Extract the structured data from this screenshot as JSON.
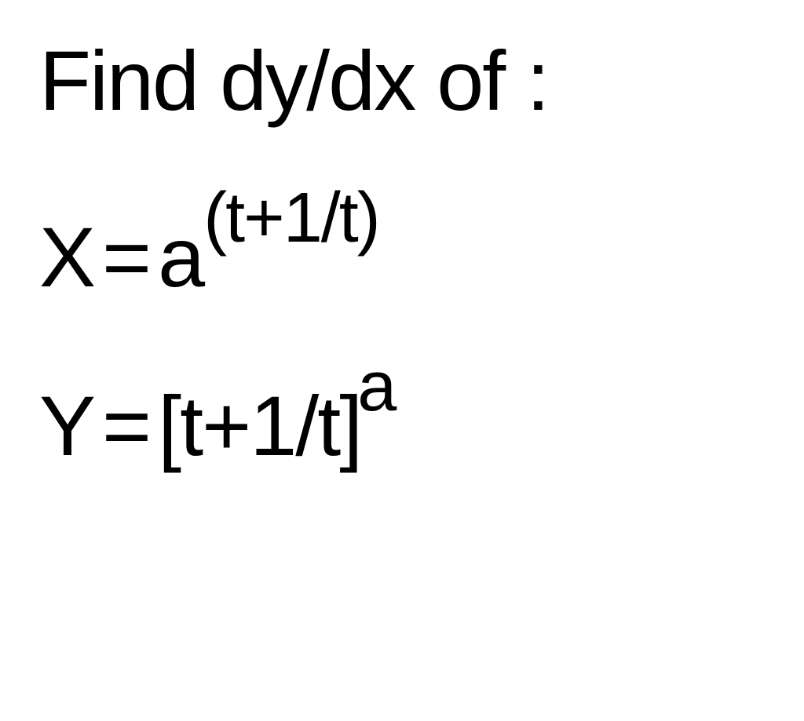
{
  "page": {
    "background_color": "#ffffff",
    "text_color": "#000000",
    "font_family": "Arial, Helvetica, sans-serif",
    "title_fontsize": 108,
    "equation_fontsize": 108,
    "superscript_fontsize": 90
  },
  "title": {
    "text": "Find dy/dx of :"
  },
  "equation1": {
    "lhs": "X",
    "equals": "=",
    "base": "a",
    "exponent": "(t+1/t)"
  },
  "equation2": {
    "lhs": "Y",
    "equals": "=",
    "base": "[t+1/t]",
    "exponent": "a"
  }
}
